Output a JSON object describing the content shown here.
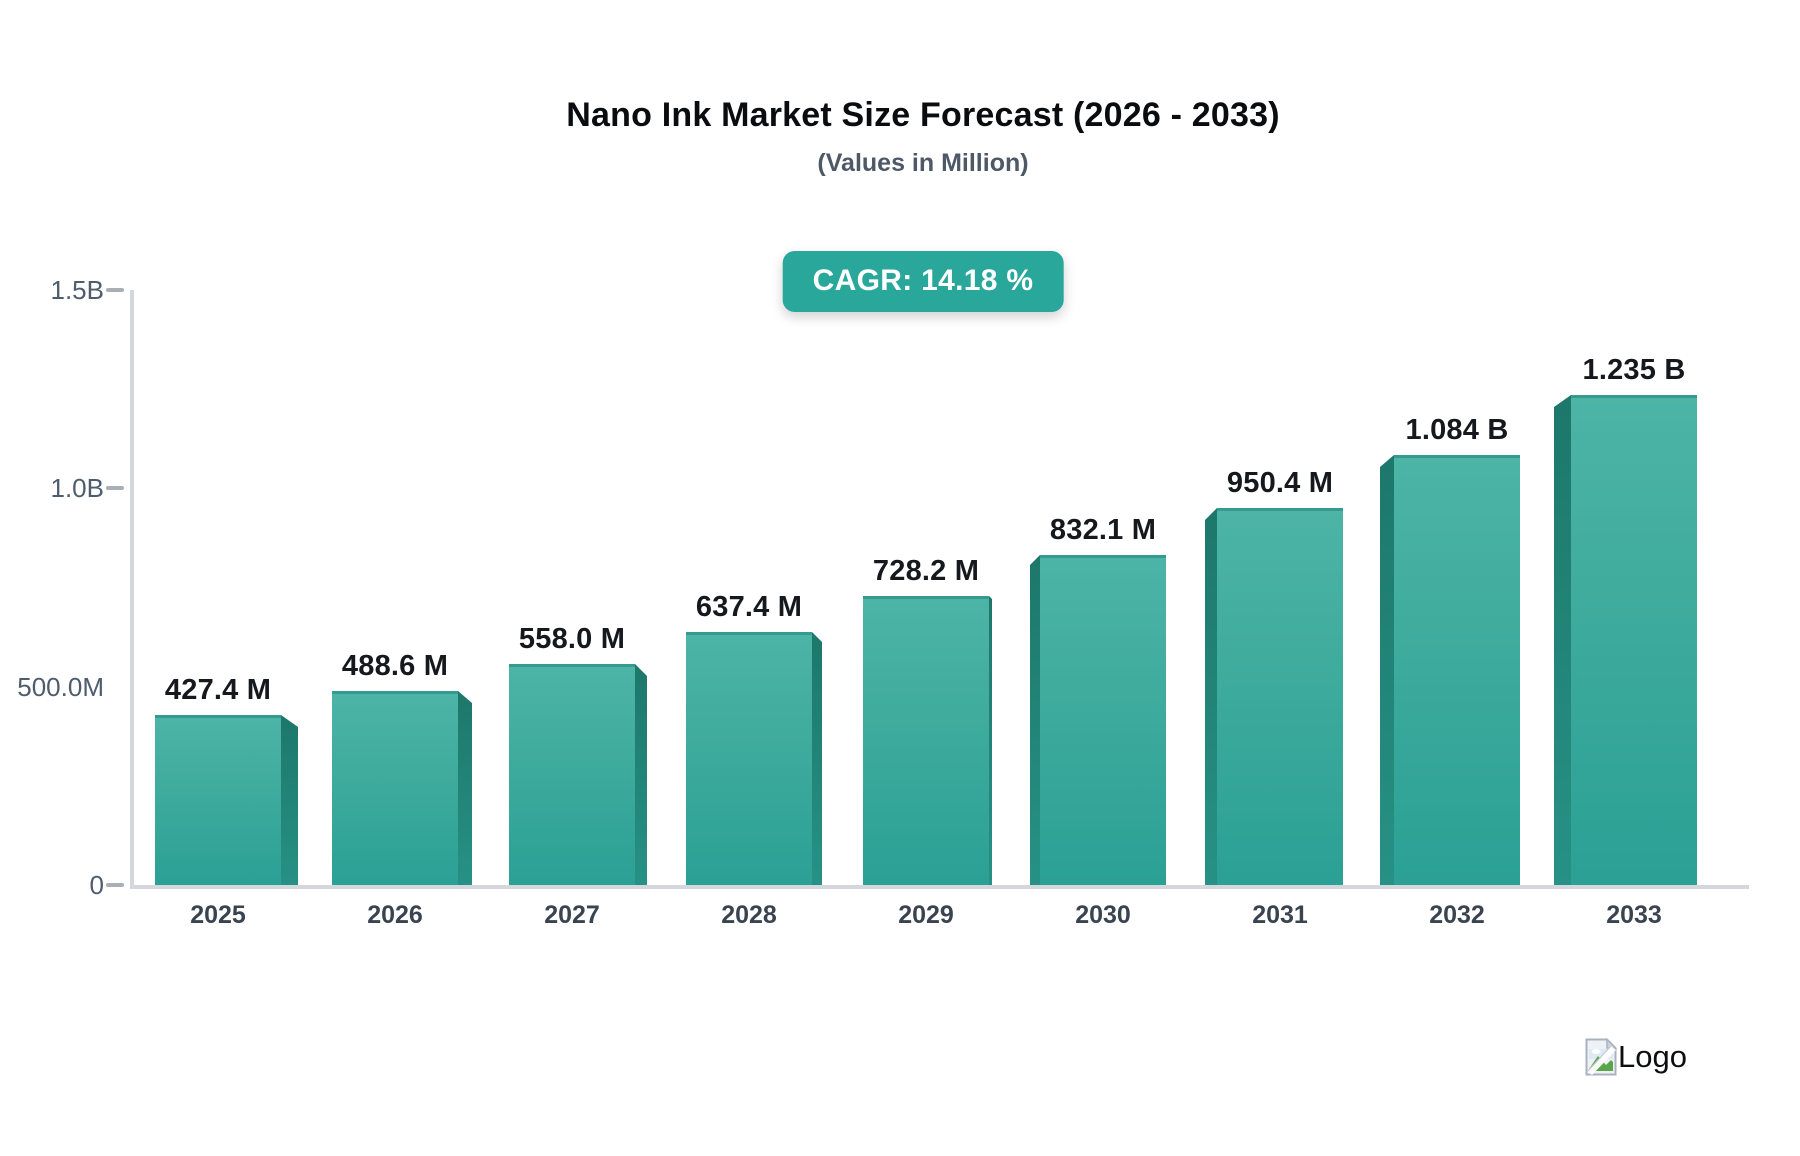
{
  "chart_data": {
    "type": "bar",
    "title": "Nano Ink Market Size Forecast (2026 - 2033)",
    "subtitle": "(Values in Million)",
    "badge_label": "CAGR: 14.18 %",
    "categories": [
      "2025",
      "2026",
      "2027",
      "2028",
      "2029",
      "2030",
      "2031",
      "2032",
      "2033"
    ],
    "values_millions": [
      427.4,
      488.6,
      558.0,
      637.4,
      728.2,
      832.1,
      950.4,
      1084,
      1235
    ],
    "value_labels": [
      "427.4 M",
      "488.6 M",
      "558.0 M",
      "637.4 M",
      "728.2 M",
      "832.1 M",
      "950.4 M",
      "1.084 B",
      "1.235 B"
    ],
    "ylim": [
      0,
      1500
    ],
    "yticks": [
      {
        "label": "1.5B",
        "value": 1500,
        "dash": true
      },
      {
        "label": "1.0B",
        "value": 1000,
        "dash": true
      },
      {
        "label": "500.0M",
        "value": 500,
        "dash": false
      },
      {
        "label": "0",
        "value": 0,
        "dash": true
      }
    ],
    "grid": false,
    "legend": "none",
    "bar_style": "3d-extruded"
  },
  "colors": {
    "accent_teal": "#2aa79b",
    "badge_bg": "#2aa79b",
    "badge_text": "#ffffff",
    "bar_gradient_top": "#4db4a6",
    "bar_gradient_bottom": "#2ba095",
    "bar_side_face": "#1d776b",
    "bar_top_edge": "#359b8e",
    "axis_line": "#d4d8dd",
    "tick_dash": "#a8afb7",
    "y_label_text": "#4e5d6e",
    "x_label_text": "#3a4450",
    "value_label_text": "#15191e",
    "title_text": "#0a0c10",
    "subtitle_text": "#4e5866"
  },
  "footer": {
    "logo_alt_text": "Logo"
  }
}
